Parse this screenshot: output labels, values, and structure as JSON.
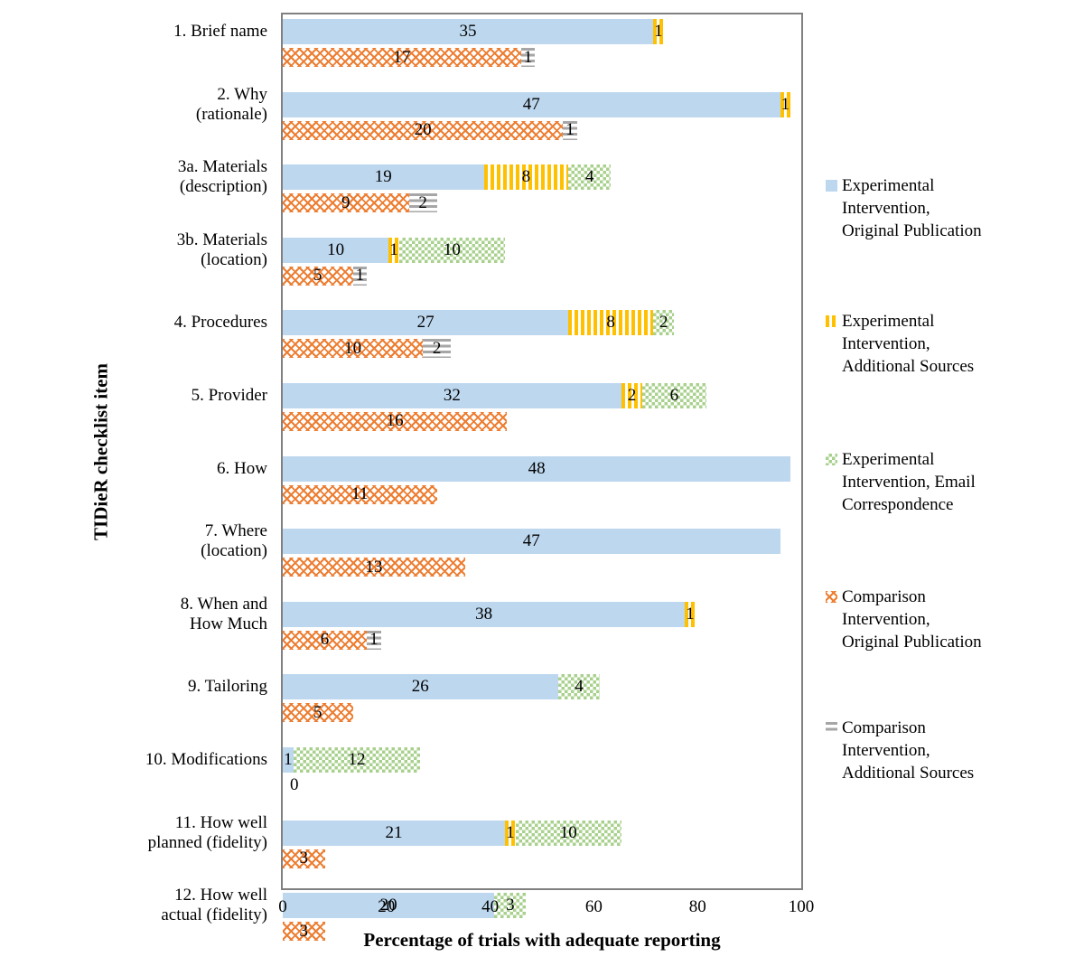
{
  "chart_data": {
    "type": "bar",
    "orientation": "horizontal",
    "stacked": true,
    "grouped_pairs": "each checklist item has an experimental-intervention bar (top) and a comparison-intervention bar (bottom)",
    "title": "",
    "xlabel": "Percentage of trials with adequate reporting",
    "ylabel": "TIDieR checklist item",
    "xlim": [
      0,
      100
    ],
    "xticks": [
      0,
      20,
      40,
      60,
      80,
      100
    ],
    "grid": false,
    "legend_position": "right",
    "segment_labels_are": "trial counts; bar length = count / denominator × 100%",
    "denominators": {
      "experimental": 49,
      "comparison": 37
    },
    "series": [
      {
        "key": "exp_original",
        "bar": "experimental",
        "label": "Experimental Intervention, Original Publication",
        "pattern": "solid",
        "color": "#BDD7EE"
      },
      {
        "key": "exp_additional",
        "bar": "experimental",
        "label": "Experimental Intervention, Additional Sources",
        "pattern": "vertical-stripes",
        "color": "#FFC000"
      },
      {
        "key": "exp_email",
        "bar": "experimental",
        "label": "Experimental Intervention, Email Correspondence",
        "pattern": "checkerboard",
        "color": "#A9D18E"
      },
      {
        "key": "comp_original",
        "bar": "comparison",
        "label": "Comparison Intervention, Original Publication",
        "pattern": "diagonal-lattice",
        "color": "#ED7D31"
      },
      {
        "key": "comp_additional",
        "bar": "comparison",
        "label": "Comparison Intervention, Additional Sources",
        "pattern": "horizontal-stripes",
        "color": "#A6A6A6"
      }
    ],
    "categories": [
      {
        "label": "1. Brief name",
        "experimental": [
          35,
          1,
          0
        ],
        "comparison": [
          17,
          1
        ]
      },
      {
        "label": "2. Why\n(rationale)",
        "experimental": [
          47,
          1,
          0
        ],
        "comparison": [
          20,
          1
        ]
      },
      {
        "label": "3a. Materials\n(description)",
        "experimental": [
          19,
          8,
          4
        ],
        "comparison": [
          9,
          2
        ]
      },
      {
        "label": "3b. Materials\n(location)",
        "experimental": [
          10,
          1,
          10
        ],
        "comparison": [
          5,
          1
        ]
      },
      {
        "label": "4. Procedures",
        "experimental": [
          27,
          8,
          2
        ],
        "comparison": [
          10,
          2
        ]
      },
      {
        "label": "5. Provider",
        "experimental": [
          32,
          2,
          6
        ],
        "comparison": [
          16,
          0
        ]
      },
      {
        "label": "6. How",
        "experimental": [
          48,
          0,
          0
        ],
        "comparison": [
          11,
          0
        ]
      },
      {
        "label": "7. Where\n(location)",
        "experimental": [
          47,
          0,
          0
        ],
        "comparison": [
          13,
          0
        ]
      },
      {
        "label": "8. When and\nHow Much",
        "experimental": [
          38,
          1,
          0
        ],
        "comparison": [
          6,
          1
        ]
      },
      {
        "label": "9. Tailoring",
        "experimental": [
          26,
          0,
          4
        ],
        "comparison": [
          5,
          0
        ]
      },
      {
        "label": "10. Modifications",
        "experimental": [
          1,
          0,
          12
        ],
        "comparison": [
          0,
          0
        ],
        "comparison_zero_label": "0"
      },
      {
        "label": "11. How well\nplanned (fidelity)",
        "experimental": [
          21,
          1,
          10
        ],
        "comparison": [
          3,
          0
        ]
      },
      {
        "label": "12. How well\nactual (fidelity)",
        "experimental": [
          20,
          0,
          3
        ],
        "comparison": [
          3,
          0
        ]
      }
    ]
  }
}
